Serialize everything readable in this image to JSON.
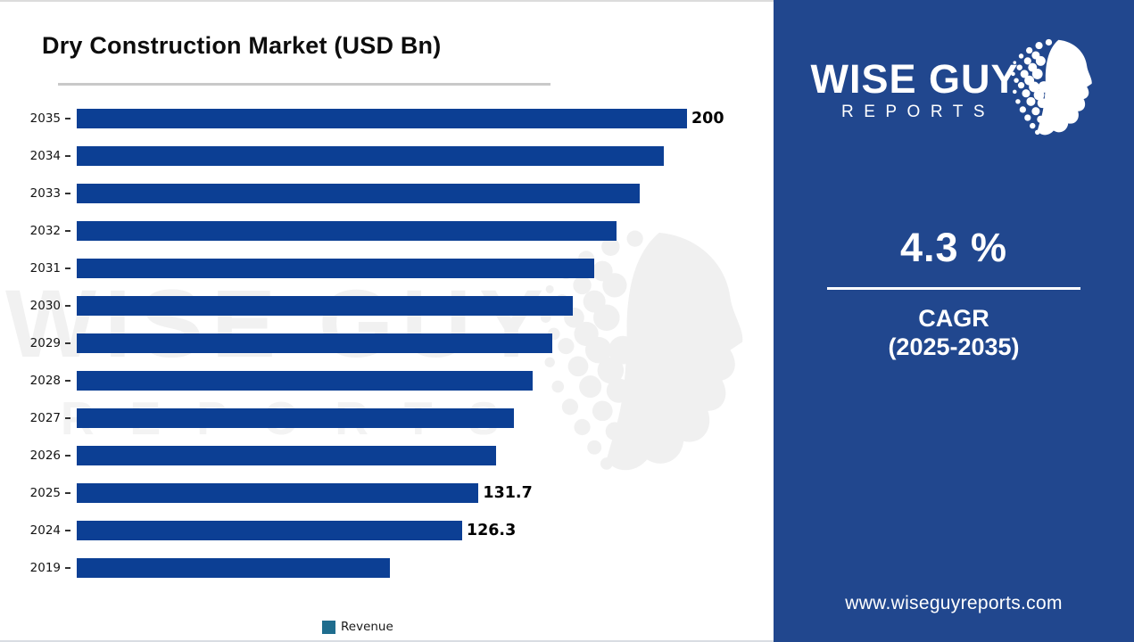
{
  "title": "Dry Construction Market (USD Bn)",
  "chart_data": {
    "type": "bar",
    "orientation": "horizontal",
    "title": "Dry Construction Market (USD Bn)",
    "categories": [
      "2035",
      "2034",
      "2033",
      "2032",
      "2031",
      "2030",
      "2029",
      "2028",
      "2027",
      "2026",
      "2025",
      "2024",
      "2019"
    ],
    "values": [
      200,
      192.4,
      184.4,
      176.8,
      169.6,
      162.6,
      155.9,
      149.4,
      143.3,
      137.4,
      131.7,
      126.3,
      102.6
    ],
    "bar_labels": [
      "200",
      "",
      "",
      "",
      "",
      "",
      "",
      "",
      "",
      "",
      "131.7",
      "126.3",
      ""
    ],
    "xlim": [
      0,
      200
    ],
    "grid": false,
    "legend": [
      "Revenue"
    ],
    "legend_position": "bottom-center",
    "bar_color": "#0c3f94",
    "legend_color": "#1f6d8e"
  },
  "watermark": {
    "line1": "WISE GUY",
    "line2": "REPORTS"
  },
  "sidebar": {
    "bg_color": "#21478e",
    "logo_line1": "WISE GUY",
    "logo_line2": "REPORTS",
    "cagr_value": "4.3 %",
    "cagr_line1": "CAGR",
    "cagr_line2": "(2025-2035)",
    "website": "www.wiseguyreports.com"
  }
}
